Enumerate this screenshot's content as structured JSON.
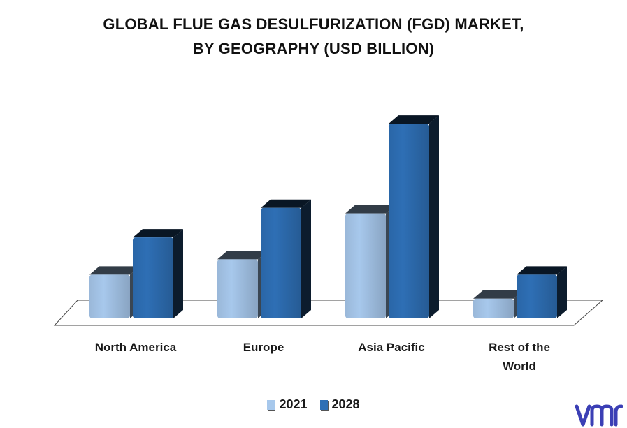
{
  "title": {
    "line1": "GLOBAL FLUE GAS DESULFURIZATION (FGD) MARKET,",
    "line2": "BY GEOGRAPHY (USD BILLION)"
  },
  "chart_data": {
    "type": "bar",
    "style": "3d-clustered-column",
    "categories": [
      "North America",
      "Europe",
      "Asia Pacific",
      "Rest of the World"
    ],
    "category_lines": [
      [
        "North America"
      ],
      [
        "Europe"
      ],
      [
        "Asia Pacific"
      ],
      [
        "Rest of the",
        "World"
      ]
    ],
    "series": [
      {
        "name": "2021",
        "values": [
          4.0,
          5.4,
          9.6,
          1.8
        ],
        "color": "#a7c8ec"
      },
      {
        "name": "2028",
        "values": [
          7.4,
          10.1,
          17.8,
          4.0
        ],
        "color": "#2e6fb5"
      }
    ],
    "title": "GLOBAL FLUE GAS DESULFURIZATION (FGD) MARKET, BY GEOGRAPHY (USD BILLION)",
    "ylim": [
      0,
      18
    ],
    "grid": false,
    "legend_position": "bottom"
  },
  "legend": {
    "items": [
      {
        "label": "2021",
        "color": "#a7c8ec"
      },
      {
        "label": "2028",
        "color": "#2e6fb5"
      }
    ]
  },
  "logo": {
    "text": "vmr",
    "color": "#3b3fb5",
    "icon": "vmr-logo"
  }
}
